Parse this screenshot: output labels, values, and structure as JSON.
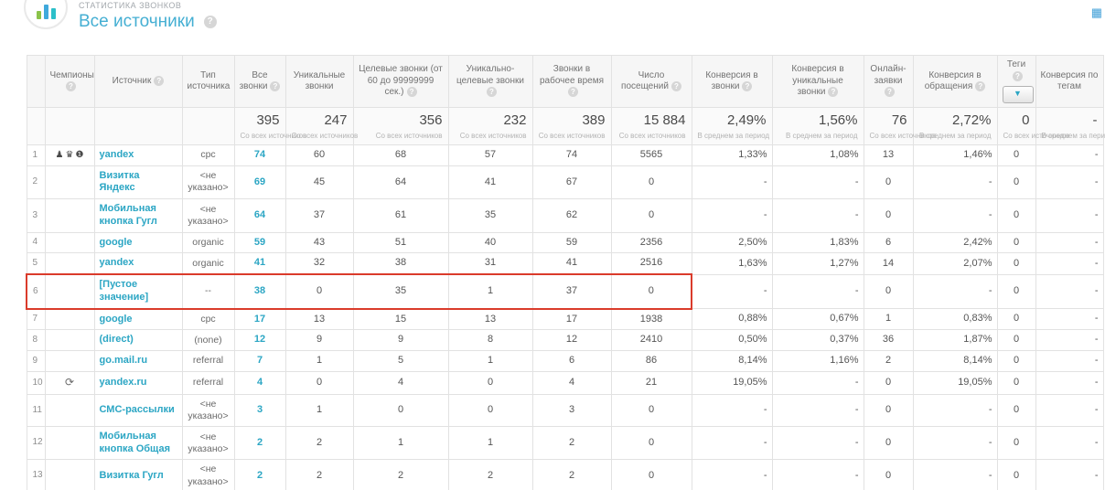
{
  "header": {
    "breadcrumb": "СТАТИСТИКА ЗВОНКОВ",
    "title": "Все источники"
  },
  "accent_colors": {
    "title": "#45afd3",
    "link": "#2ca6c4",
    "highlight_border": "#da3b2b"
  },
  "table": {
    "columns": [
      {
        "key": "num",
        "label": "",
        "help": false
      },
      {
        "key": "champions",
        "label": "Чемпионы",
        "help": true
      },
      {
        "key": "source",
        "label": "Источник",
        "help": true
      },
      {
        "key": "type",
        "label": "Тип источника",
        "help": false
      },
      {
        "key": "all_calls",
        "label": "Все звонки",
        "help": true
      },
      {
        "key": "unique_calls",
        "label": "Уникальные звонки",
        "help": false
      },
      {
        "key": "target_calls",
        "label": "Целевые звонки (от 60 до 99999999 сек.)",
        "help": true
      },
      {
        "key": "unique_target_calls",
        "label": "Уникально-целевые звонки",
        "help": true
      },
      {
        "key": "work_time_calls",
        "label": "Звонки в рабочее время",
        "help": true
      },
      {
        "key": "visits",
        "label": "Число посещений",
        "help": true
      },
      {
        "key": "conv_calls",
        "label": "Конверсия в звонки",
        "help": true
      },
      {
        "key": "conv_unique",
        "label": "Конверсия в уникальные звонки",
        "help": true
      },
      {
        "key": "online_leads",
        "label": "Онлайн-заявки",
        "help": true
      },
      {
        "key": "conv_appeals",
        "label": "Конверсия в обращения",
        "help": true
      },
      {
        "key": "tags",
        "label": "Теги",
        "help": true,
        "dropdown": true
      },
      {
        "key": "conv_tags",
        "label": "Конверсия по тегам",
        "help": false
      }
    ],
    "totals": {
      "all_calls": {
        "value": "395",
        "sub": "Со всех источников"
      },
      "unique_calls": {
        "value": "247",
        "sub": "Со всех источников"
      },
      "target_calls": {
        "value": "356",
        "sub": "Со всех источников"
      },
      "unique_target_calls": {
        "value": "232",
        "sub": "Со всех источников"
      },
      "work_time_calls": {
        "value": "389",
        "sub": "Со всех источников"
      },
      "visits": {
        "value": "15 884",
        "sub": "Со всех источников"
      },
      "conv_calls": {
        "value": "2,49%",
        "sub": "В среднем за период"
      },
      "conv_unique": {
        "value": "1,56%",
        "sub": "В среднем за период"
      },
      "online_leads": {
        "value": "76",
        "sub": "Со всех источников"
      },
      "conv_appeals": {
        "value": "2,72%",
        "sub": "В среднем за период"
      },
      "tags": {
        "value": "0",
        "sub": "Со всех источников"
      },
      "conv_tags": {
        "value": "-",
        "sub": "В среднем за период"
      }
    },
    "rows": [
      {
        "num": "1",
        "champions": [
          "bell-icon",
          "crown-icon",
          "first-place-icon"
        ],
        "source": "yandex",
        "type": "cpc",
        "all_calls": "74",
        "unique_calls": "60",
        "target_calls": "68",
        "unique_target_calls": "57",
        "work_time_calls": "74",
        "visits": "5565",
        "conv_calls": "1,33%",
        "conv_unique": "1,08%",
        "online_leads": "13",
        "conv_appeals": "1,46%",
        "tags": "0",
        "conv_tags": "-",
        "highlighted": false
      },
      {
        "num": "2",
        "champions": [],
        "source": "Визитка Яндекс",
        "type": "<не указано>",
        "all_calls": "69",
        "unique_calls": "45",
        "target_calls": "64",
        "unique_target_calls": "41",
        "work_time_calls": "67",
        "visits": "0",
        "conv_calls": "-",
        "conv_unique": "-",
        "online_leads": "0",
        "conv_appeals": "-",
        "tags": "0",
        "conv_tags": "-",
        "highlighted": false
      },
      {
        "num": "3",
        "champions": [],
        "source": "Мобильная кнопка Гугл",
        "type": "<не указано>",
        "all_calls": "64",
        "unique_calls": "37",
        "target_calls": "61",
        "unique_target_calls": "35",
        "work_time_calls": "62",
        "visits": "0",
        "conv_calls": "-",
        "conv_unique": "-",
        "online_leads": "0",
        "conv_appeals": "-",
        "tags": "0",
        "conv_tags": "-",
        "highlighted": false
      },
      {
        "num": "4",
        "champions": [],
        "source": "google",
        "type": "organic",
        "all_calls": "59",
        "unique_calls": "43",
        "target_calls": "51",
        "unique_target_calls": "40",
        "work_time_calls": "59",
        "visits": "2356",
        "conv_calls": "2,50%",
        "conv_unique": "1,83%",
        "online_leads": "6",
        "conv_appeals": "2,42%",
        "tags": "0",
        "conv_tags": "-",
        "highlighted": false
      },
      {
        "num": "5",
        "champions": [],
        "source": "yandex",
        "type": "organic",
        "all_calls": "41",
        "unique_calls": "32",
        "target_calls": "38",
        "unique_target_calls": "31",
        "work_time_calls": "41",
        "visits": "2516",
        "conv_calls": "1,63%",
        "conv_unique": "1,27%",
        "online_leads": "14",
        "conv_appeals": "2,07%",
        "tags": "0",
        "conv_tags": "-",
        "highlighted": false
      },
      {
        "num": "6",
        "champions": [],
        "source": "[Пустое значение]",
        "type": "--",
        "all_calls": "38",
        "unique_calls": "0",
        "target_calls": "35",
        "unique_target_calls": "1",
        "work_time_calls": "37",
        "visits": "0",
        "conv_calls": "-",
        "conv_unique": "-",
        "online_leads": "0",
        "conv_appeals": "-",
        "tags": "0",
        "conv_tags": "-",
        "highlighted": true
      },
      {
        "num": "7",
        "champions": [],
        "source": "google",
        "type": "cpc",
        "all_calls": "17",
        "unique_calls": "13",
        "target_calls": "15",
        "unique_target_calls": "13",
        "work_time_calls": "17",
        "visits": "1938",
        "conv_calls": "0,88%",
        "conv_unique": "0,67%",
        "online_leads": "1",
        "conv_appeals": "0,83%",
        "tags": "0",
        "conv_tags": "-",
        "highlighted": false
      },
      {
        "num": "8",
        "champions": [],
        "source": "(direct)",
        "type": "(none)",
        "all_calls": "12",
        "unique_calls": "9",
        "target_calls": "9",
        "unique_target_calls": "8",
        "work_time_calls": "12",
        "visits": "2410",
        "conv_calls": "0,50%",
        "conv_unique": "0,37%",
        "online_leads": "36",
        "conv_appeals": "1,87%",
        "tags": "0",
        "conv_tags": "-",
        "highlighted": false
      },
      {
        "num": "9",
        "champions": [],
        "source": "go.mail.ru",
        "type": "referral",
        "all_calls": "7",
        "unique_calls": "1",
        "target_calls": "5",
        "unique_target_calls": "1",
        "work_time_calls": "6",
        "visits": "86",
        "conv_calls": "8,14%",
        "conv_unique": "1,16%",
        "online_leads": "2",
        "conv_appeals": "8,14%",
        "tags": "0",
        "conv_tags": "-",
        "highlighted": false
      },
      {
        "num": "10",
        "champions": [
          "sync-icon"
        ],
        "source": "yandex.ru",
        "type": "referral",
        "all_calls": "4",
        "unique_calls": "0",
        "target_calls": "4",
        "unique_target_calls": "0",
        "work_time_calls": "4",
        "visits": "21",
        "conv_calls": "19,05%",
        "conv_unique": "-",
        "online_leads": "0",
        "conv_appeals": "19,05%",
        "tags": "0",
        "conv_tags": "-",
        "highlighted": false
      },
      {
        "num": "11",
        "champions": [],
        "source": "СМС-рассылки",
        "type": "<не указано>",
        "all_calls": "3",
        "unique_calls": "1",
        "target_calls": "0",
        "unique_target_calls": "0",
        "work_time_calls": "3",
        "visits": "0",
        "conv_calls": "-",
        "conv_unique": "-",
        "online_leads": "0",
        "conv_appeals": "-",
        "tags": "0",
        "conv_tags": "-",
        "highlighted": false
      },
      {
        "num": "12",
        "champions": [],
        "source": "Мобильная кнопка Общая",
        "type": "<не указано>",
        "all_calls": "2",
        "unique_calls": "2",
        "target_calls": "1",
        "unique_target_calls": "1",
        "work_time_calls": "2",
        "visits": "0",
        "conv_calls": "-",
        "conv_unique": "-",
        "online_leads": "0",
        "conv_appeals": "-",
        "tags": "0",
        "conv_tags": "-",
        "highlighted": false
      },
      {
        "num": "13",
        "champions": [],
        "source": "Визитка Гугл",
        "type": "<не указано>",
        "all_calls": "2",
        "unique_calls": "2",
        "target_calls": "2",
        "unique_target_calls": "2",
        "work_time_calls": "2",
        "visits": "0",
        "conv_calls": "-",
        "conv_unique": "-",
        "online_leads": "0",
        "conv_appeals": "-",
        "tags": "0",
        "conv_tags": "-",
        "highlighted": false
      }
    ]
  }
}
